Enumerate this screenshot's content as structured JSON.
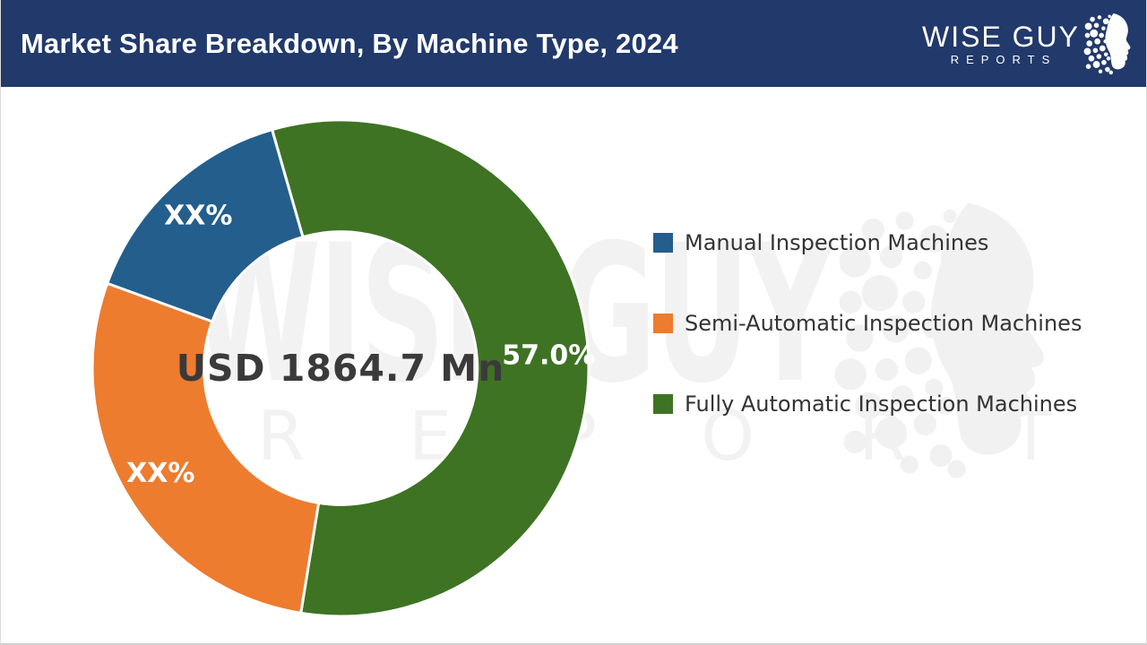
{
  "header": {
    "title": "Market Share Breakdown, By Machine Type, 2024",
    "background": "#21396b",
    "logo": {
      "line1": "WISE GUY",
      "line2": "REPORTS"
    }
  },
  "watermark": {
    "line1": "WISE GUY",
    "line2": "R E P O R T S"
  },
  "chart_data": {
    "type": "pie",
    "variant": "donut",
    "title": "Market Share Breakdown, By Machine Type, 2024",
    "center_label": "USD 1864.7 Mn",
    "start_angle_deg": -16,
    "donut_hole_ratio": 0.55,
    "label_radius_ratio": 0.84,
    "legend_position": "right",
    "segments": [
      {
        "id": "manual",
        "name": "Manual Inspection Machines",
        "value_pct": 15,
        "displayed_label": "XX%",
        "color": "#235e8d"
      },
      {
        "id": "semi_automatic",
        "name": "Semi-Automatic Inspection Machines",
        "value_pct": 28,
        "displayed_label": "XX%",
        "color": "#ed7c2f"
      },
      {
        "id": "fully_automatic",
        "name": "Fully Automatic Inspection Machines",
        "value_pct": 57,
        "displayed_label": "57.0%",
        "color": "#3e7323"
      }
    ]
  }
}
